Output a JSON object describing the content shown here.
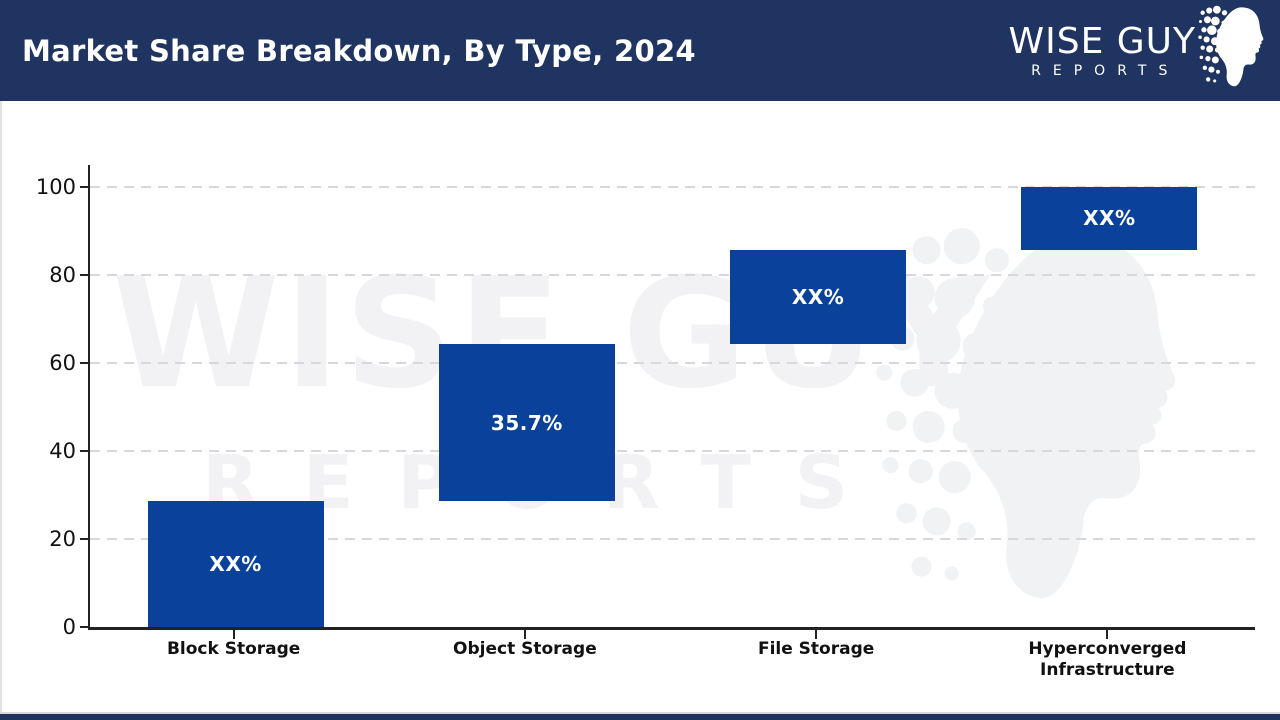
{
  "header": {
    "title": "Market Share Breakdown, By Type, 2024",
    "logo": {
      "wordmark": "WISE GUY",
      "subtext": "REPORTS"
    }
  },
  "watermark": {
    "line1": "WISE GUY",
    "line2": "REPORTS"
  },
  "chart_data": {
    "type": "bar",
    "variant": "floating-segment-waterfall",
    "title": "Market Share Breakdown, By Type, 2024",
    "categories": [
      "Block Storage",
      "Object Storage",
      "File Storage",
      "Hyperconverged Infrastructure"
    ],
    "segments": [
      {
        "category": "Block Storage",
        "start": 0,
        "end": 28.6,
        "label": "XX%"
      },
      {
        "category": "Object Storage",
        "start": 28.6,
        "end": 64.3,
        "label": "35.7%"
      },
      {
        "category": "File Storage",
        "start": 64.3,
        "end": 85.7,
        "label": "XX%"
      },
      {
        "category": "Hyperconverged Infrastructure",
        "start": 85.7,
        "end": 100,
        "label": "XX%"
      }
    ],
    "yticks": [
      0,
      20,
      40,
      60,
      80,
      100
    ],
    "ylim": [
      0,
      105
    ],
    "xlabel": "",
    "ylabel": "",
    "grid": "horizontal-dashed",
    "legend": "none",
    "colors": {
      "bar": "#0a429b",
      "bar_label": "#ffffff",
      "grid": "#d8d8dc",
      "axis": "#222222",
      "header_bg": "#203462",
      "watermark": "#f2f2f5"
    }
  }
}
